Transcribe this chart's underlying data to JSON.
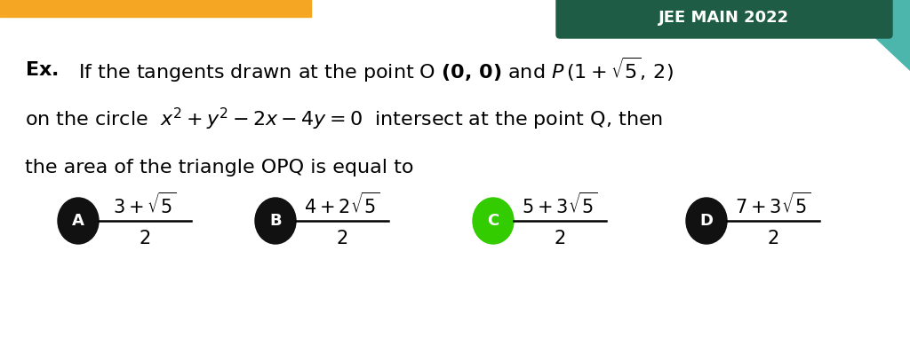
{
  "background_color": "#ffffff",
  "badge_text": "JEE MAIN 2022",
  "badge_bg": "#1e5c45",
  "badge_text_color": "#ffffff",
  "top_bar_color": "#f5a623",
  "right_triangle_color": "#4db6ac",
  "options": [
    {
      "label": "A",
      "numerator": "$3+\\sqrt{5}$",
      "denominator": "2",
      "circle_color": "#111111",
      "correct": false
    },
    {
      "label": "B",
      "numerator": "$4+2\\sqrt{5}$",
      "denominator": "2",
      "circle_color": "#111111",
      "correct": false
    },
    {
      "label": "C",
      "numerator": "$5+3\\sqrt{5}$",
      "denominator": "2",
      "circle_color": "#33cc00",
      "correct": true
    },
    {
      "label": "D",
      "numerator": "$7+3\\sqrt{5}$",
      "denominator": "2",
      "circle_color": "#111111",
      "correct": false
    }
  ],
  "fig_width": 10.24,
  "fig_height": 3.89,
  "dpi": 100
}
